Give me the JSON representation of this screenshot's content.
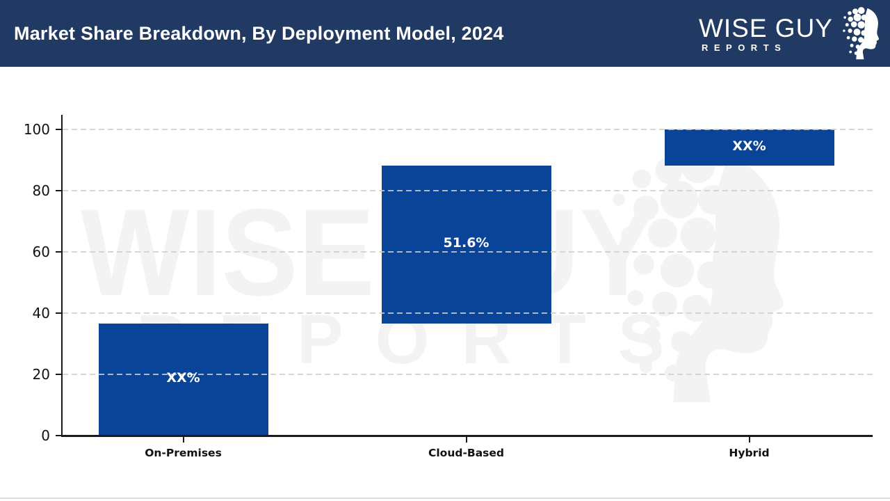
{
  "header": {
    "title": "Market Share Breakdown, By Deployment Model, 2024",
    "logo": {
      "wordmark": "WISE GUY",
      "subtext": "REPORTS"
    }
  },
  "watermark": {
    "line1": "WISE GUY",
    "line2": "REPORTS"
  },
  "colors": {
    "header_bg": "#213a63",
    "bar_fill": "#0a4499",
    "bar_label_text": "#ffffff",
    "grid": "#cfcfcf",
    "axis": "#1a1a1a",
    "tick_text": "#111111",
    "watermark": "#f3f3f3",
    "chart_bg": "#ffffff"
  },
  "chart_data": {
    "type": "bar",
    "subtype": "stacked-waterfall",
    "title": "Market Share Breakdown, By Deployment Model, 2024",
    "categories": [
      "On-Premises",
      "Cloud-Based",
      "Hybrid"
    ],
    "segments": [
      {
        "category": "On-Premises",
        "label": "XX%",
        "start": 0,
        "end": 36.6,
        "value": null
      },
      {
        "category": "Cloud-Based",
        "label": "51.6%",
        "start": 36.6,
        "end": 88.2,
        "value": 51.6
      },
      {
        "category": "Hybrid",
        "label": "XX%",
        "start": 88.2,
        "end": 100,
        "value": null
      }
    ],
    "unit": "%",
    "yticks": [
      0,
      20,
      40,
      60,
      80,
      100
    ],
    "ylim": [
      0,
      105
    ],
    "xlabel": "",
    "ylabel": "",
    "grid": "horizontal-dashed",
    "grid_over_bars": true,
    "legend": "none"
  }
}
